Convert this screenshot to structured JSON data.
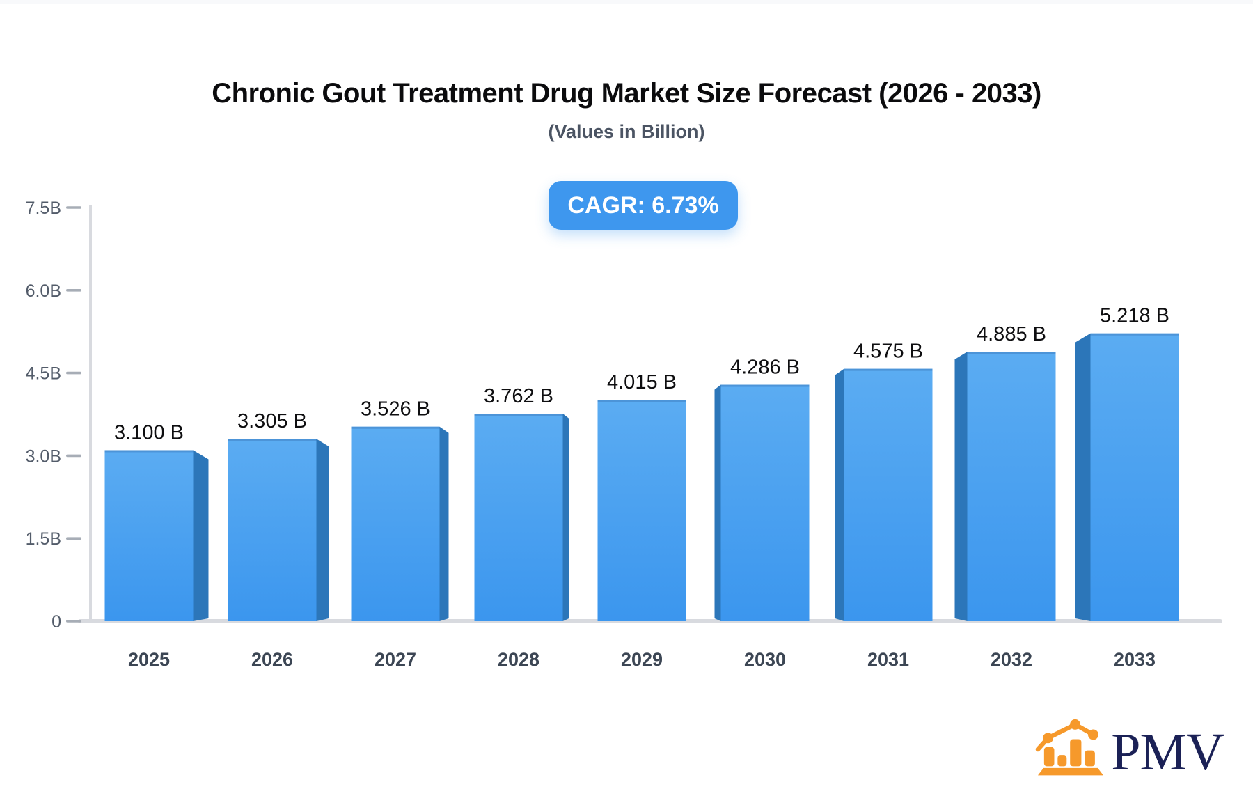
{
  "chart_data": {
    "type": "bar",
    "title": "Chronic Gout Treatment Drug Market Size Forecast (2026 - 2033)",
    "subtitle": "(Values in Billion)",
    "cagr_label": "CAGR: 6.73%",
    "categories": [
      "2025",
      "2026",
      "2027",
      "2028",
      "2029",
      "2030",
      "2031",
      "2032",
      "2033"
    ],
    "values": [
      3.1,
      3.305,
      3.526,
      3.762,
      4.015,
      4.286,
      4.575,
      4.885,
      5.218
    ],
    "value_labels": [
      "3.100 B",
      "3.305 B",
      "3.526 B",
      "3.762 B",
      "4.015 B",
      "4.286 B",
      "4.575 B",
      "4.885 B",
      "5.218 B"
    ],
    "xlabel": "",
    "ylabel": "",
    "ylim": [
      0,
      7.5
    ],
    "yticks": {
      "values": [
        7.5,
        6.0,
        4.5,
        3.0,
        1.5,
        0
      ],
      "labels": [
        "7.5B",
        "6.0B",
        "4.5B",
        "3.0B",
        "1.5B",
        "0"
      ]
    },
    "grid": false,
    "legend": false,
    "bar_style": "3d-perspective-fan",
    "colors": {
      "bar_face_top": "#5BACF2",
      "bar_face_bottom": "#3B96EE",
      "bar_side": "#2C76B9",
      "bar_top_edge": "#4A8FD3",
      "axis_line": "#D8DADF",
      "tick_mark": "#A7ADB6",
      "tick_label": "#535C6A",
      "category_label": "#3C4654",
      "value_label": "#0E0E10",
      "badge_bg": "#3E97EE",
      "badge_text": "#FFFFFF"
    }
  },
  "logo": {
    "text": "PMV",
    "navy": "#1B2156",
    "orange": "#F6992B"
  }
}
